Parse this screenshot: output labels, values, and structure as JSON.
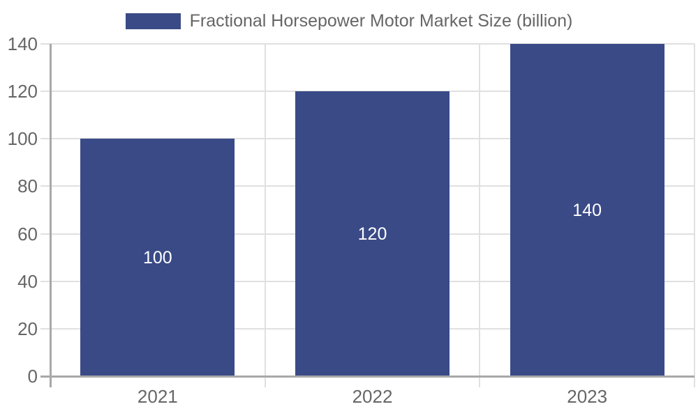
{
  "legend": {
    "position": "top"
  },
  "chart_data": {
    "type": "bar",
    "title": "Fractional Horsepower Motor Market Size (billion)",
    "categories": [
      "2021",
      "2022",
      "2023"
    ],
    "series": [
      {
        "name": "Fractional Horsepower Motor Market Size (billion)",
        "values": [
          100,
          120,
          140
        ]
      }
    ],
    "values": [
      100,
      120,
      140
    ],
    "bar_value_labels": [
      "100",
      "120",
      "140"
    ],
    "xlabel": "",
    "ylabel": "",
    "ylim": [
      0,
      140
    ],
    "yticks": [
      0,
      20,
      40,
      60,
      80,
      100,
      120,
      140
    ],
    "grid": true,
    "legend_position": "top"
  },
  "colors": {
    "bar": "#3A4A87",
    "grid": "#E0E0E0",
    "axis": "#A8A8A8",
    "text": "#666666",
    "bar_label": "#FFFFFF",
    "background": "#FFFFFF"
  }
}
